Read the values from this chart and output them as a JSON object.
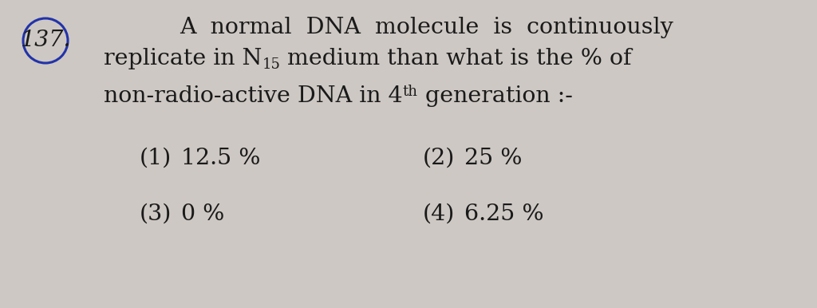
{
  "bg_color": "#cdc8c3",
  "text_color": "#1a1a1a",
  "circle_color": "#2233aa",
  "font_family": "DejaVu Serif",
  "font_size": 20.5,
  "font_size_sub": 13,
  "font_size_opt": 20.5,
  "q_num": "137.",
  "line1": "A  normal  DNA  molecule  is  continuously",
  "line2_pre": "replicate in N",
  "line2_sub": "15",
  "line2_post": " medium than what is the % of",
  "line3_pre": "non-radio-active DNA in 4",
  "line3_sup": "th",
  "line3_post": " generation :-",
  "opt1_num": "(1)",
  "opt1_val": "12.5 %",
  "opt2_num": "(2)",
  "opt2_val": "25 %",
  "opt3_num": "(3)",
  "opt3_val": "0 %",
  "opt4_num": "(4)",
  "opt4_val": "6.25 %"
}
